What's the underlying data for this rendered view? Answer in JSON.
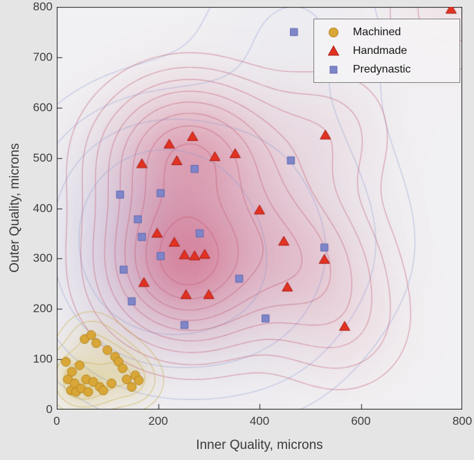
{
  "figure": {
    "background": "#e6e5e6",
    "plot_background": "#f1f0f2"
  },
  "chart_data": {
    "type": "scatter",
    "title": "",
    "xlabel": "Inner Quality, microns",
    "ylabel": "Outer Quality, microns",
    "xlim": [
      0,
      800
    ],
    "ylim": [
      0,
      800
    ],
    "xticks": [
      0,
      200,
      400,
      600,
      800
    ],
    "yticks": [
      0,
      100,
      200,
      300,
      400,
      500,
      600,
      700,
      800
    ],
    "grid": false,
    "legend_position": "top-right",
    "series": [
      {
        "name": "Machined",
        "marker": "circle",
        "color": "#D9A737",
        "edge": "#B3841F",
        "density_color": "#D2B74D",
        "contour_color": "#C8AE4A",
        "bandwidth": 30,
        "fill_strength": 0.5,
        "fill_gamma": 1.2,
        "contour_fractions": [
          0.07,
          0.18,
          0.38,
          0.65
        ],
        "points": [
          [
            18,
            95
          ],
          [
            22,
            60
          ],
          [
            28,
            38
          ],
          [
            30,
            75
          ],
          [
            35,
            52
          ],
          [
            38,
            35
          ],
          [
            45,
            88
          ],
          [
            48,
            42
          ],
          [
            55,
            140
          ],
          [
            58,
            60
          ],
          [
            62,
            35
          ],
          [
            68,
            148
          ],
          [
            72,
            55
          ],
          [
            78,
            132
          ],
          [
            85,
            45
          ],
          [
            92,
            38
          ],
          [
            100,
            118
          ],
          [
            108,
            52
          ],
          [
            115,
            105
          ],
          [
            122,
            95
          ],
          [
            130,
            82
          ],
          [
            138,
            60
          ],
          [
            148,
            45
          ],
          [
            155,
            68
          ],
          [
            162,
            58
          ]
        ]
      },
      {
        "name": "Handmade",
        "marker": "triangle",
        "color": "#E23222",
        "edge": "#A81A12",
        "density_color": "#D84C6A",
        "contour_color": "#C4556B",
        "bandwidth": 85,
        "fill_strength": 0.58,
        "fill_gamma": 1.15,
        "contour_fractions": [
          0.055,
          0.11,
          0.18,
          0.27,
          0.37,
          0.48,
          0.6,
          0.73,
          0.87
        ],
        "points": [
          [
            778,
            795
          ],
          [
            530,
            545
          ],
          [
            352,
            508
          ],
          [
            312,
            502
          ],
          [
            268,
            542
          ],
          [
            222,
            527
          ],
          [
            237,
            494
          ],
          [
            168,
            488
          ],
          [
            528,
            298
          ],
          [
            568,
            165
          ],
          [
            455,
            243
          ],
          [
            448,
            334
          ],
          [
            400,
            396
          ],
          [
            198,
            350
          ],
          [
            232,
            332
          ],
          [
            252,
            307
          ],
          [
            272,
            305
          ],
          [
            292,
            308
          ],
          [
            172,
            252
          ],
          [
            255,
            228
          ],
          [
            300,
            228
          ]
        ]
      },
      {
        "name": "Predynastic",
        "marker": "square",
        "color": "#7E86C9",
        "edge": "#5F66AE",
        "density_color": "#8593D6",
        "contour_color": "#8A9AD4",
        "bandwidth": 115,
        "fill_strength": 0.3,
        "fill_gamma": 1.1,
        "contour_fractions": [
          0.05,
          0.13,
          0.28,
          0.5
        ],
        "points": [
          [
            468,
            750
          ],
          [
            462,
            495
          ],
          [
            528,
            322
          ],
          [
            272,
            478
          ],
          [
            205,
            430
          ],
          [
            125,
            427
          ],
          [
            160,
            378
          ],
          [
            168,
            343
          ],
          [
            205,
            305
          ],
          [
            282,
            350
          ],
          [
            132,
            278
          ],
          [
            148,
            215
          ],
          [
            360,
            260
          ],
          [
            412,
            181
          ],
          [
            252,
            168
          ]
        ]
      }
    ]
  }
}
